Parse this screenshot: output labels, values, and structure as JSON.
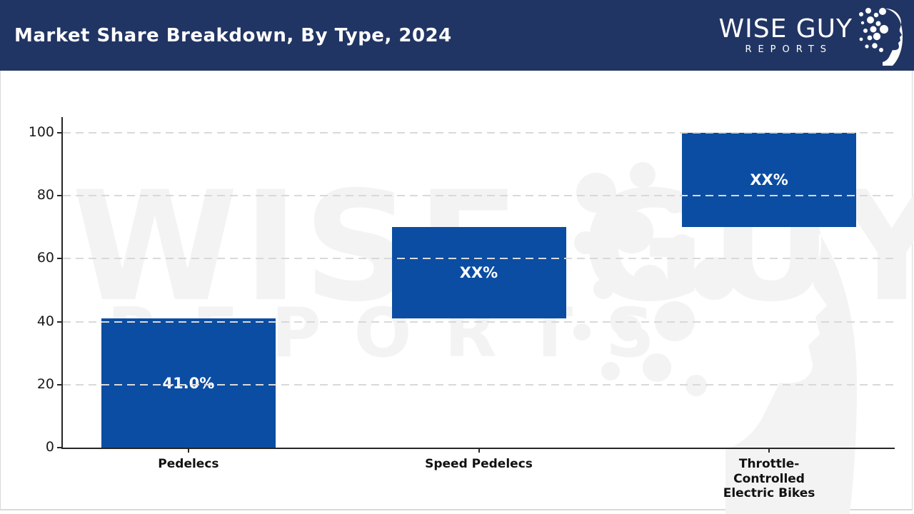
{
  "header": {
    "title": "Market Share Breakdown, By Type, 2024",
    "bg_color": "#213564",
    "logo": {
      "line1": "WISE GUY",
      "line2": "REPORTS"
    }
  },
  "watermark": {
    "line1": "WISE GUY",
    "line2": "REPORTS"
  },
  "chart_data": {
    "type": "bar",
    "variant": "floating-waterfall",
    "title": "Market Share Breakdown, By Type, 2024",
    "categories": [
      "Pedelecs",
      "Speed Pedelecs",
      "Throttle-Controlled Electric Bikes"
    ],
    "category_display_lines": [
      [
        "Pedelecs"
      ],
      [
        "Speed Pedelecs"
      ],
      [
        "Throttle-",
        "Controlled",
        "Electric Bikes"
      ]
    ],
    "segments": [
      {
        "category": "Pedelecs",
        "start": 0,
        "end": 41,
        "label": "41.0%"
      },
      {
        "category": "Speed Pedelecs",
        "start": 41,
        "end": 70,
        "label": "XX%"
      },
      {
        "category": "Throttle-Controlled Electric Bikes",
        "start": 70,
        "end": 100,
        "label": "XX%"
      }
    ],
    "ylabel": "",
    "xlabel": "",
    "yticks": [
      0,
      20,
      40,
      60,
      80,
      100
    ],
    "ylim": [
      0,
      105
    ],
    "grid": "dashed-horizontal",
    "legend": "none",
    "bar_color": "#0B4DA2",
    "bar_label_color": "#ffffff",
    "axis_color": "#262626",
    "grid_color": "#d9d9d9"
  }
}
